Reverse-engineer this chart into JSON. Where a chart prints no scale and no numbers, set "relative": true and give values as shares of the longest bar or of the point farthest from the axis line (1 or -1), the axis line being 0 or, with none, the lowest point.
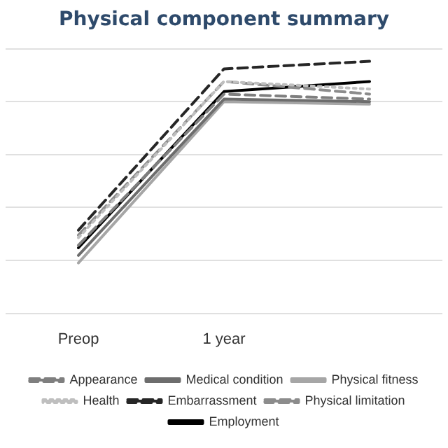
{
  "chart_data": {
    "type": "line",
    "title": "Physical component summary",
    "relative": true,
    "grid": "y",
    "legend": "bottom",
    "marker": "none",
    "categories": [
      "Preop",
      "1 year",
      null
    ],
    "series": [
      {
        "name": "Appearance",
        "color": "#7f7f7f",
        "line_style": "dashed",
        "values": [
          0.27,
          0.87,
          0.85
        ]
      },
      {
        "name": "Medical condition",
        "color": "#6d6d6d",
        "line_style": "solid",
        "values": [
          0.23,
          0.85,
          0.84
        ]
      },
      {
        "name": "Physical fitness",
        "color": "#a6a6a6",
        "line_style": "solid",
        "values": [
          0.2,
          0.84,
          0.83
        ]
      },
      {
        "name": "Health",
        "color": "#bfbfbf",
        "line_style": "dotted",
        "values": [
          0.3,
          0.92,
          0.89
        ]
      },
      {
        "name": "Embarrassment",
        "color": "#262626",
        "line_style": "dashed",
        "values": [
          0.33,
          0.97,
          1
        ]
      },
      {
        "name": "Physical limitation",
        "color": "#8c8c8c",
        "line_style": "dashed",
        "values": [
          0.31,
          0.92,
          0.87
        ]
      },
      {
        "name": "Employment",
        "color": "#000000",
        "line_style": "solid",
        "values": [
          0.26,
          0.88,
          0.92
        ]
      }
    ]
  }
}
